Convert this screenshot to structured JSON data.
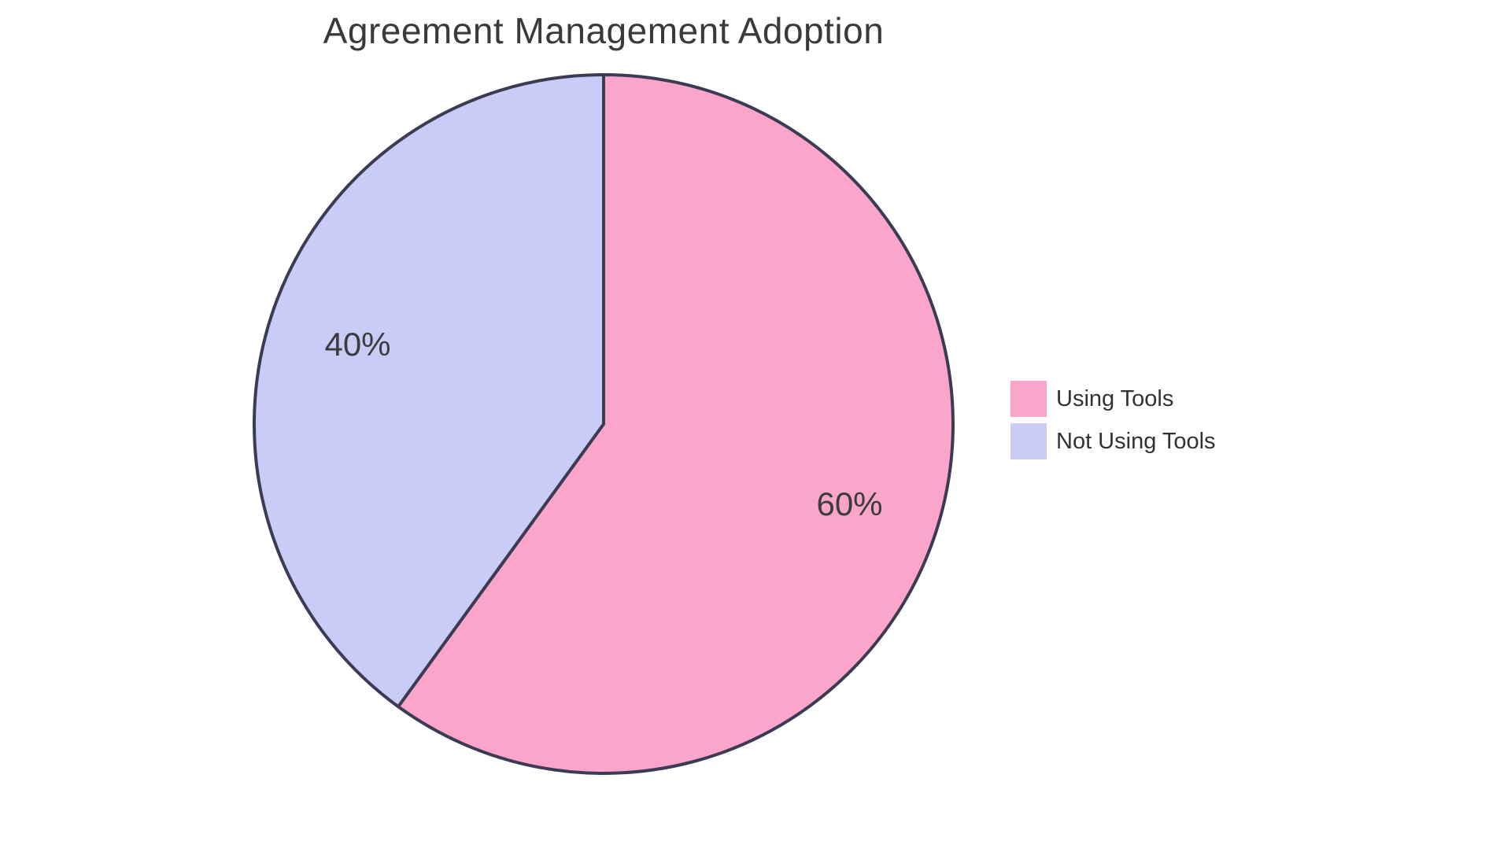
{
  "title": "Agreement Management Adoption",
  "chart_data": {
    "type": "pie",
    "title": "Agreement Management Adoption",
    "slices": [
      {
        "label": "Using Tools",
        "value": 60,
        "percent_label": "60%",
        "color": "#FBA5CA"
      },
      {
        "label": "Not Using Tools",
        "value": 40,
        "percent_label": "40%",
        "color": "#C9CCF6"
      }
    ],
    "start_angle_deg": 90,
    "direction": "clockwise",
    "edge_color": "#3B3B54",
    "edge_width": 4,
    "percent_label_color": "#3C3C3C",
    "percent_label_radius_fraction": 0.74,
    "legend_position": "right",
    "background": "#FFFFFF"
  },
  "legend": {
    "items": [
      {
        "label": "Using Tools",
        "color": "#FBA5CA"
      },
      {
        "label": "Not Using Tools",
        "color": "#C9CCF6"
      }
    ]
  }
}
